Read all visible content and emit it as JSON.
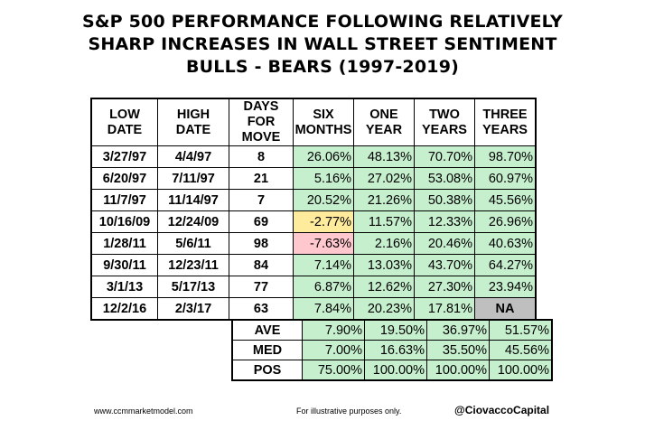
{
  "title": {
    "line1": "S&P 500 PERFORMANCE FOLLOWING RELATIVELY",
    "line2": "SHARP INCREASES IN WALL STREET SENTIMENT",
    "line3": "BULLS - BEARS (1997-2019)"
  },
  "headers": [
    [
      "LOW",
      "DATE"
    ],
    [
      "HIGH",
      "DATE"
    ],
    [
      "DAYS FOR",
      "MOVE"
    ],
    [
      "SIX",
      "MONTHS"
    ],
    [
      "ONE",
      "YEAR"
    ],
    [
      "TWO",
      "YEARS"
    ],
    [
      "THREE",
      "YEARS"
    ]
  ],
  "rows": [
    {
      "low": "3/27/97",
      "high": "4/4/97",
      "days": "8",
      "six": "26.06%",
      "one": "48.13%",
      "two": "70.70%",
      "three": "98.70%"
    },
    {
      "low": "6/20/97",
      "high": "7/11/97",
      "days": "21",
      "six": "5.16%",
      "one": "27.02%",
      "two": "53.08%",
      "three": "60.97%"
    },
    {
      "low": "11/7/97",
      "high": "11/14/97",
      "days": "7",
      "six": "20.52%",
      "one": "21.26%",
      "two": "50.38%",
      "three": "45.56%"
    },
    {
      "low": "10/16/09",
      "high": "12/24/09",
      "days": "69",
      "six": "-2.77%",
      "one": "11.57%",
      "two": "12.33%",
      "three": "26.96%"
    },
    {
      "low": "1/28/11",
      "high": "5/6/11",
      "days": "98",
      "six": "-7.63%",
      "one": "2.16%",
      "two": "20.46%",
      "three": "40.63%"
    },
    {
      "low": "9/30/11",
      "high": "12/23/11",
      "days": "84",
      "six": "7.14%",
      "one": "13.03%",
      "two": "43.70%",
      "three": "64.27%"
    },
    {
      "low": "3/1/13",
      "high": "5/17/13",
      "days": "77",
      "six": "6.87%",
      "one": "12.62%",
      "two": "27.30%",
      "three": "23.94%"
    },
    {
      "low": "12/2/16",
      "high": "2/3/17",
      "days": "63",
      "six": "7.84%",
      "one": "20.23%",
      "two": "17.81%",
      "three": "NA"
    }
  ],
  "stats": [
    {
      "label": "AVE",
      "six": "7.90%",
      "one": "19.50%",
      "two": "36.97%",
      "three": "51.57%"
    },
    {
      "label": "MED",
      "six": "7.00%",
      "one": "16.63%",
      "two": "35.50%",
      "three": "45.56%"
    },
    {
      "label": "POS",
      "six": "75.00%",
      "one": "100.00%",
      "two": "100.00%",
      "three": "100.00%"
    }
  ],
  "colors": {
    "positive": "#c6efce",
    "slight_negative": "#ffeb9c",
    "negative": "#ffc7ce",
    "na": "#bfbfbf"
  },
  "footer": {
    "website": "www.ccmmarketmodel.com",
    "disclaimer": "For illustrative purposes only.",
    "handle": "@CiovaccoCapital"
  }
}
